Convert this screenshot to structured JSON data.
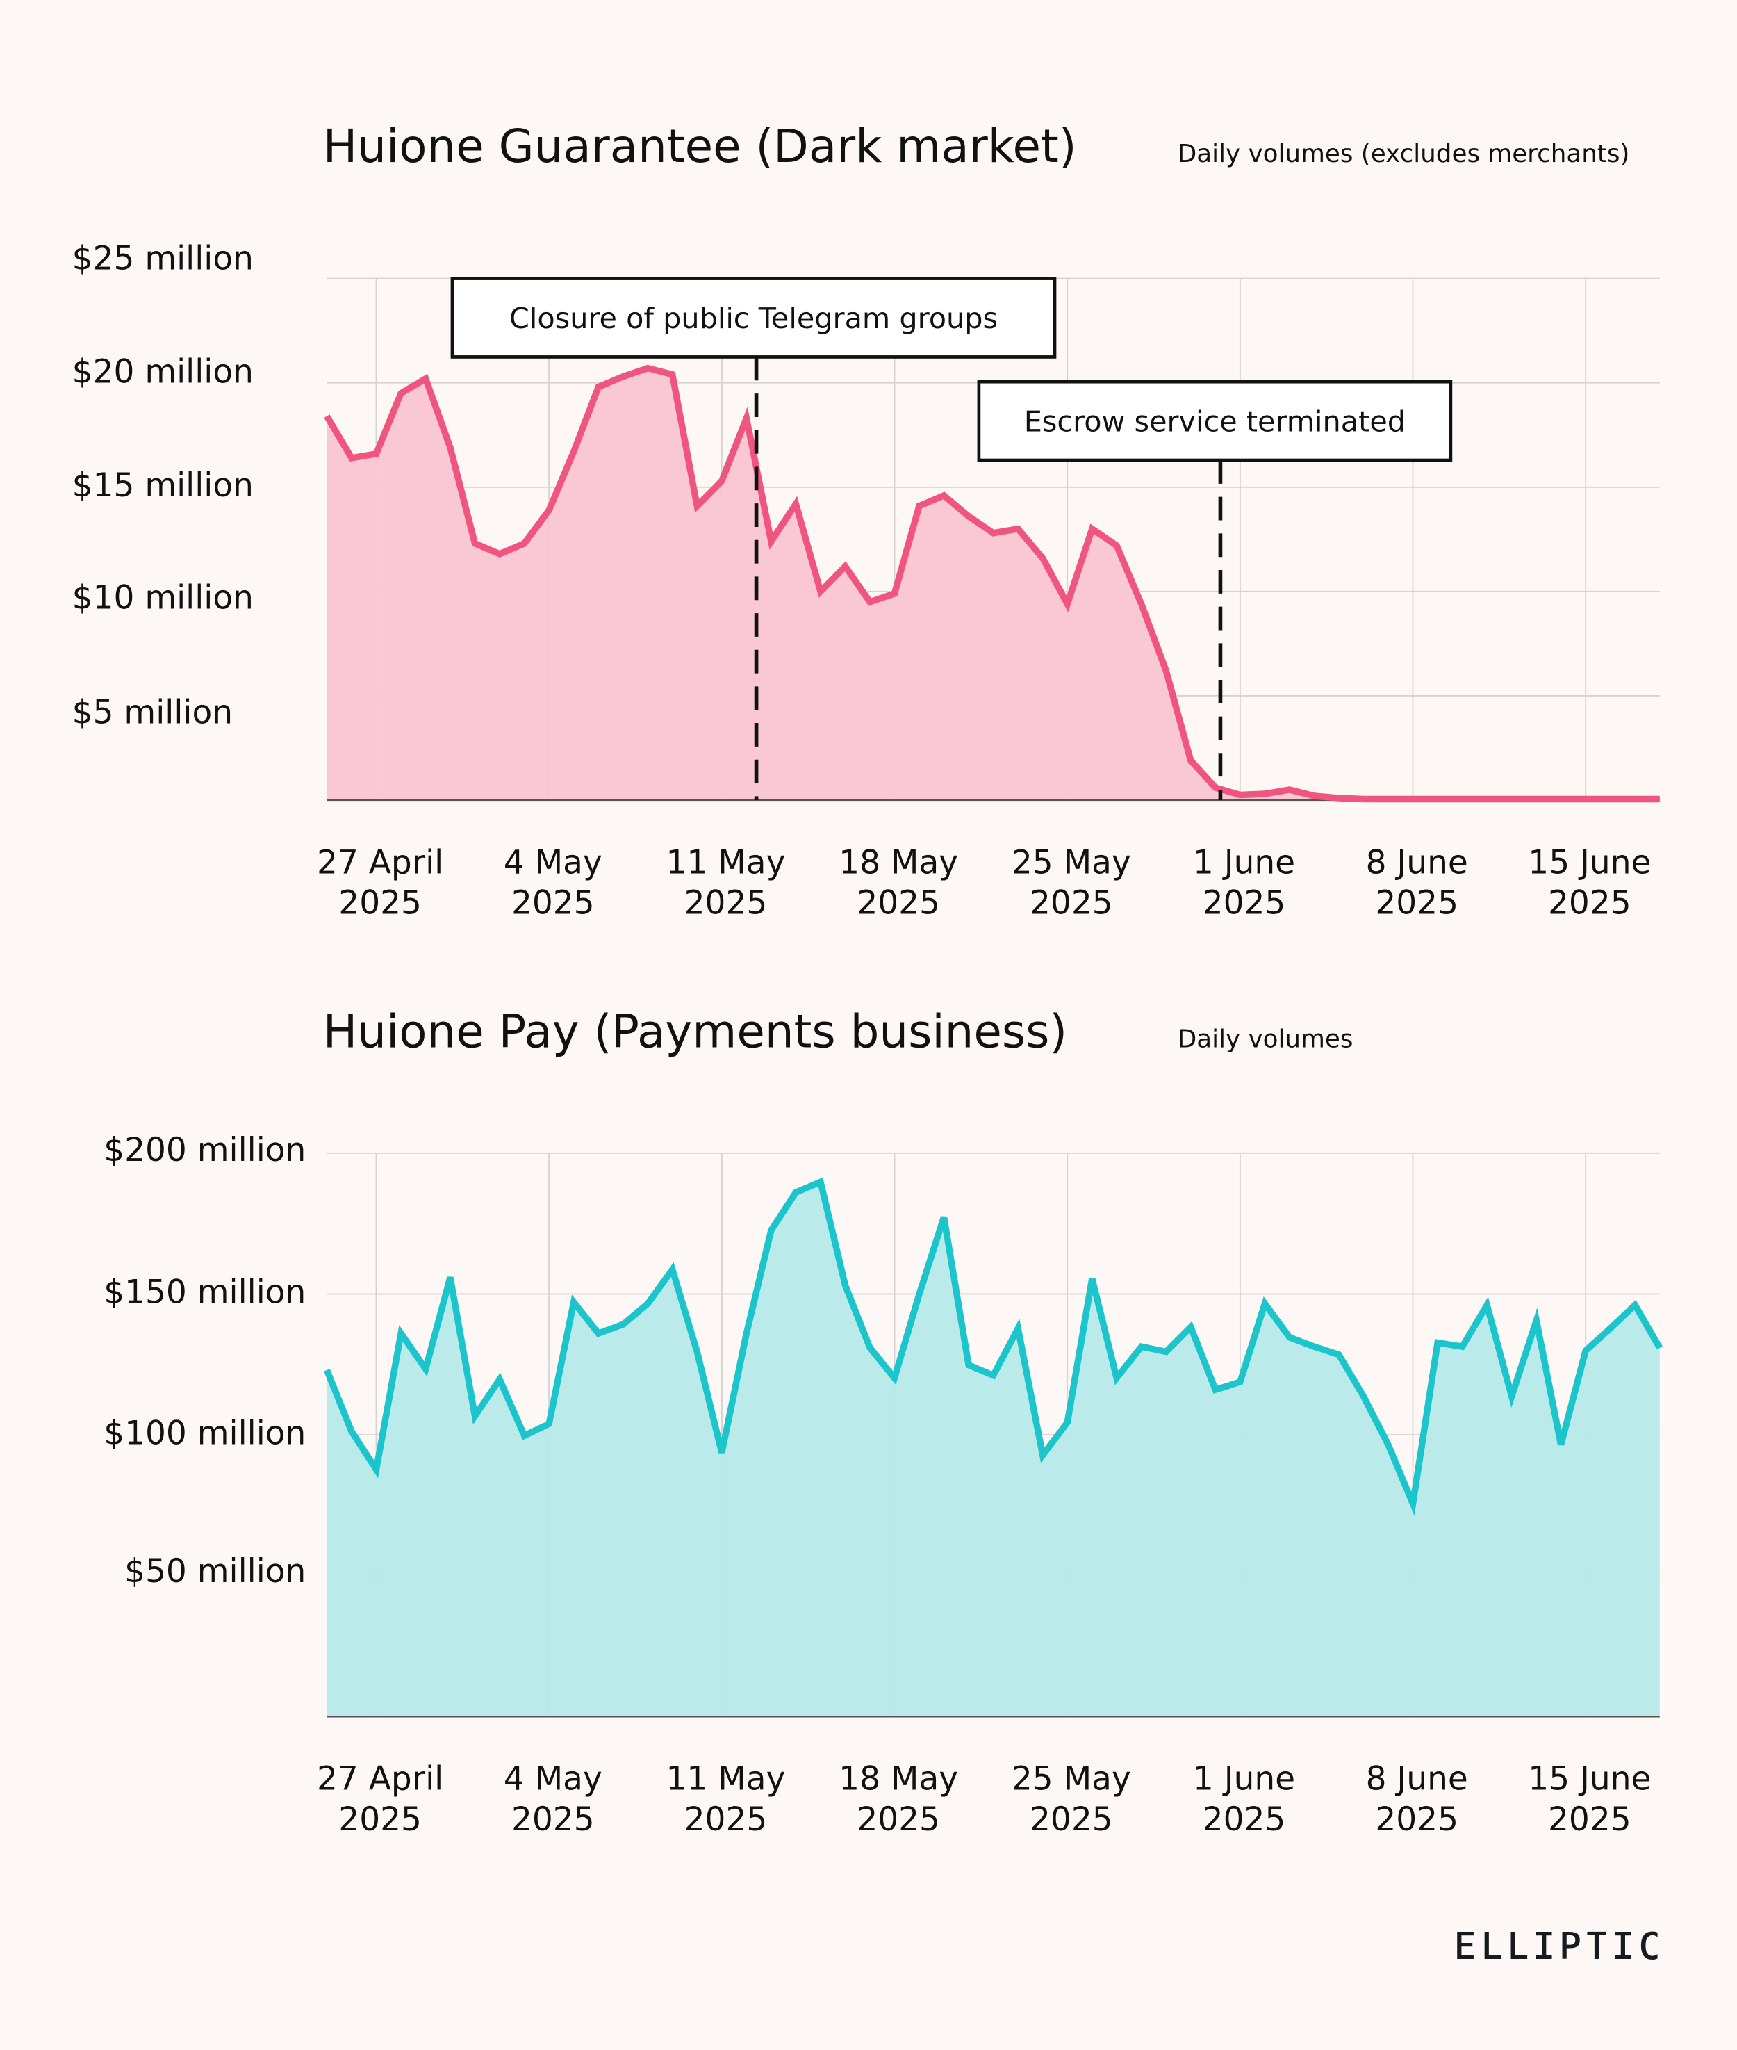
{
  "chart_data": [
    {
      "type": "area",
      "title": "Huione Guarantee (Dark market)",
      "subtitle": "Daily volumes (excludes merchants)",
      "ylabel": "",
      "xlabel": "",
      "ylim": [
        0,
        25
      ],
      "y_unit": "million USD",
      "y_ticks": [
        {
          "value": 25,
          "label": "$25 million"
        },
        {
          "value": 20,
          "label": "$20 million"
        },
        {
          "value": 15,
          "label": "$15 million"
        },
        {
          "value": 10,
          "label": "$10 million"
        },
        {
          "value": 5,
          "label": "$5 million"
        }
      ],
      "x_start": "2025-04-25",
      "x_ticks": [
        {
          "day": 2,
          "line1": "27 April",
          "line2": "2025"
        },
        {
          "day": 9,
          "line1": "4 May",
          "line2": "2025"
        },
        {
          "day": 16,
          "line1": "11 May",
          "line2": "2025"
        },
        {
          "day": 23,
          "line1": "18 May",
          "line2": "2025"
        },
        {
          "day": 30,
          "line1": "25 May",
          "line2": "2025"
        },
        {
          "day": 37,
          "line1": "1 June",
          "line2": "2025"
        },
        {
          "day": 44,
          "line1": "8 June",
          "line2": "2025"
        },
        {
          "day": 51,
          "line1": "15 June",
          "line2": "2025"
        }
      ],
      "annotations": [
        {
          "day": 17.4,
          "text": "Closure of public Telegram groups"
        },
        {
          "day": 36.2,
          "text": "Escrow service terminated"
        }
      ],
      "color": "#f0557f",
      "fill": "#f9c5d2",
      "values": [
        18.4,
        16.4,
        16.6,
        19.5,
        20.2,
        16.9,
        12.3,
        11.8,
        12.3,
        13.9,
        16.7,
        19.8,
        20.3,
        20.7,
        20.4,
        14.1,
        15.3,
        18.3,
        12.4,
        14.2,
        10.0,
        11.2,
        9.5,
        9.9,
        14.1,
        14.6,
        13.6,
        12.8,
        13.0,
        11.6,
        9.4,
        13.0,
        12.2,
        9.4,
        6.2,
        1.9,
        0.6,
        0.25,
        0.3,
        0.5,
        0.2,
        0.1,
        0.05,
        0.05,
        0.05,
        0.05,
        0.05,
        0.05,
        0.05,
        0.05,
        0.05,
        0.05,
        0.05,
        0.05,
        0.05
      ]
    },
    {
      "type": "area",
      "title": "Huione Pay (Payments business)",
      "subtitle": "Daily volumes",
      "ylabel": "",
      "xlabel": "",
      "ylim": [
        0,
        200
      ],
      "y_unit": "million USD",
      "y_ticks": [
        {
          "value": 200,
          "label": "$200 million"
        },
        {
          "value": 150,
          "label": "$150 million"
        },
        {
          "value": 100,
          "label": "$100 million"
        },
        {
          "value": 50,
          "label": "$50 million"
        }
      ],
      "x_start": "2025-04-25",
      "x_ticks": [
        {
          "day": 2,
          "line1": "27 April",
          "line2": "2025"
        },
        {
          "day": 9,
          "line1": "4 May",
          "line2": "2025"
        },
        {
          "day": 16,
          "line1": "11 May",
          "line2": "2025"
        },
        {
          "day": 23,
          "line1": "18 May",
          "line2": "2025"
        },
        {
          "day": 30,
          "line1": "25 May",
          "line2": "2025"
        },
        {
          "day": 37,
          "line1": "1 June",
          "line2": "2025"
        },
        {
          "day": 44,
          "line1": "8 June",
          "line2": "2025"
        },
        {
          "day": 51,
          "line1": "15 June",
          "line2": "2025"
        }
      ],
      "color": "#1cc4cc",
      "fill": "#b7e9ea",
      "values": [
        123.0,
        101.2,
        87.7,
        136.0,
        123.4,
        155.9,
        106.7,
        119.7,
        99.7,
        103.9,
        147.1,
        136.0,
        139.2,
        146.6,
        158.7,
        129.5,
        93.7,
        136.0,
        172.6,
        186.1,
        189.8,
        153.1,
        130.9,
        120.2,
        149.9,
        177.3,
        124.8,
        121.1,
        137.8,
        92.8,
        104.4,
        155.5,
        120.2,
        131.3,
        129.5,
        138.3,
        116.0,
        118.8,
        146.6,
        134.6,
        131.3,
        128.5,
        113.7,
        96.5,
        75.6,
        132.7,
        131.3,
        146.1,
        113.7,
        140.6,
        96.5,
        129.9,
        137.8,
        146.1,
        130.9
      ]
    }
  ],
  "logo": "ELLIPTIC"
}
